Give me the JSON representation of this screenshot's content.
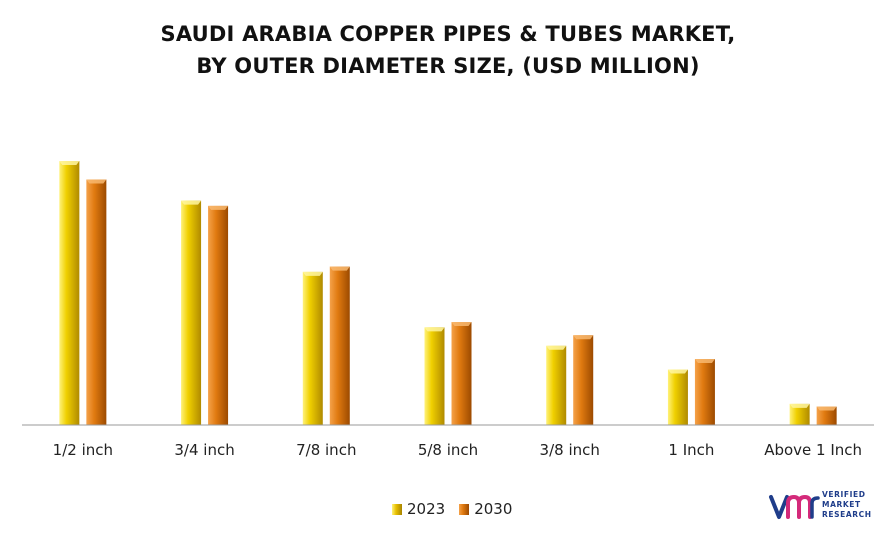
{
  "chart_data": {
    "type": "bar",
    "title_lines": [
      "SAUDI ARABIA COPPER PIPES & TUBES MARKET,",
      "BY OUTER DIAMETER SIZE, (USD MILLION)"
    ],
    "categories": [
      "1/2 inch",
      "3/4 inch",
      "7/8 inch",
      "5/8 inch",
      "3/8 inch",
      "1 Inch",
      "Above 1 Inch"
    ],
    "series": [
      {
        "name": "2023",
        "values": [
          100,
          85,
          58,
          37,
          30,
          21,
          8
        ],
        "color": "#e8c000"
      },
      {
        "name": "2030",
        "values": [
          93,
          83,
          60,
          39,
          34,
          25,
          7
        ],
        "color": "#e07a10"
      }
    ],
    "ylim": [
      0,
      100
    ],
    "grid": false,
    "legend_position": "bottom"
  },
  "logo": {
    "mark": "vmr",
    "line1": "VERIFIED",
    "line2": "MARKET",
    "line3": "RESEARCH"
  }
}
